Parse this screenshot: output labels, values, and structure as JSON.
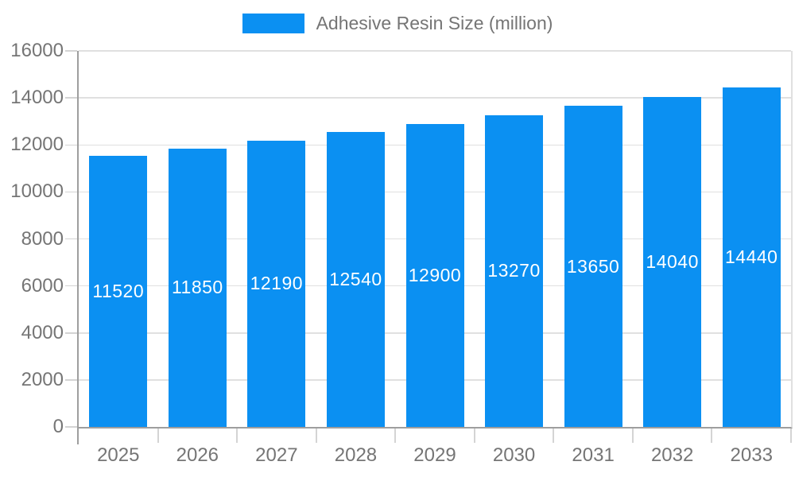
{
  "chart_data": {
    "type": "bar",
    "title": "",
    "legend": {
      "label": "Adhesive Resin Size (million)",
      "position": "top"
    },
    "categories": [
      "2025",
      "2026",
      "2027",
      "2028",
      "2029",
      "2030",
      "2031",
      "2032",
      "2033"
    ],
    "series": [
      {
        "name": "Adhesive Resin Size (million)",
        "values": [
          11520,
          11850,
          12190,
          12540,
          12900,
          13270,
          13650,
          14040,
          14440
        ]
      }
    ],
    "value_labels_shown": true,
    "xlabel": "",
    "ylabel": "",
    "ylim": [
      0,
      16000
    ],
    "yticks": [
      0,
      2000,
      4000,
      6000,
      8000,
      10000,
      12000,
      14000,
      16000
    ],
    "grid": true,
    "colors": {
      "bar": "#0b90f2",
      "bar_value_text": "#ffffff",
      "axis_line": "#9e9e9e",
      "grid_line": "#e0e0e0",
      "tick_line": "#d4d4d4",
      "axis_text": "#757575",
      "background": "#ffffff"
    }
  }
}
